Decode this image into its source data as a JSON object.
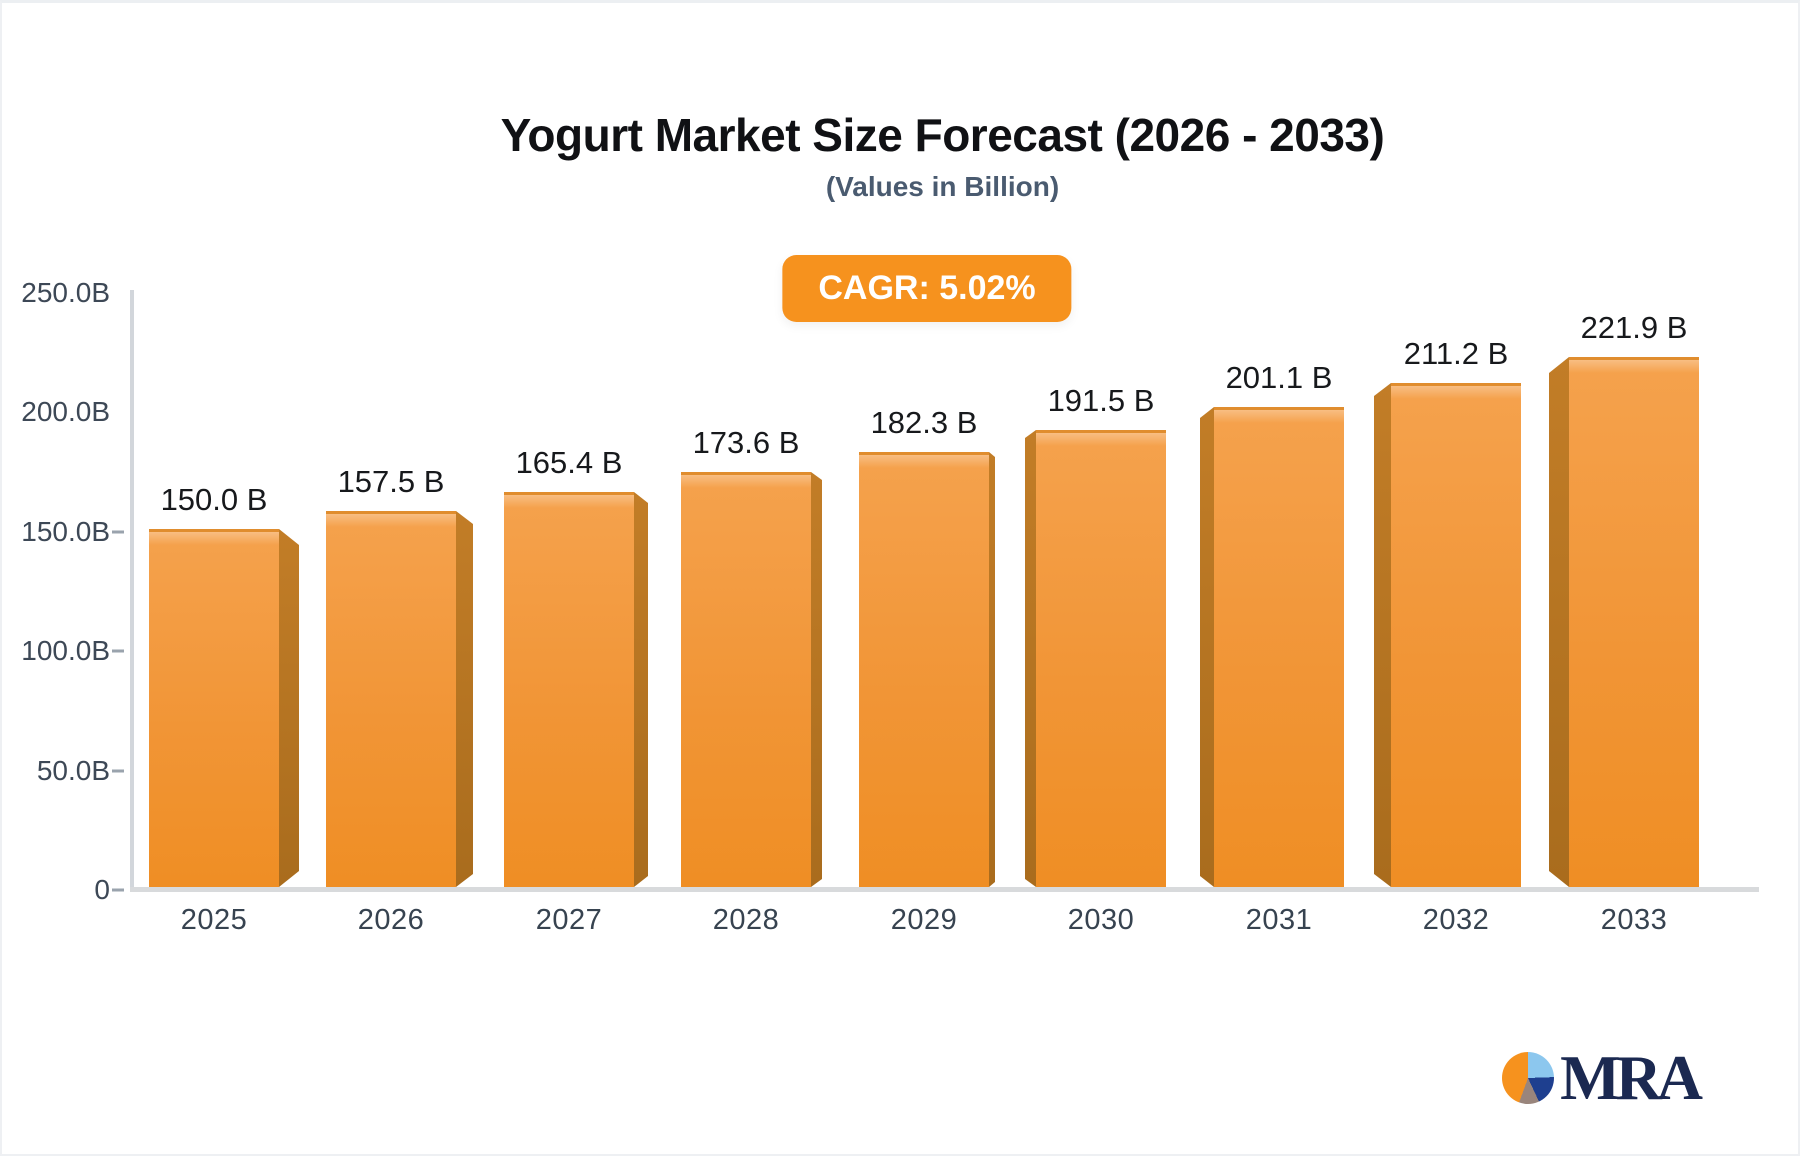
{
  "title": "Yogurt Market Size Forecast (2026 - 2033)",
  "subtitle": "(Values in Billion)",
  "badge": {
    "label": "CAGR: 5.02%",
    "color": "#F6921E"
  },
  "chart_data": {
    "type": "bar",
    "title": "Yogurt Market Size Forecast (2026 - 2033)",
    "subtitle": "(Values in Billion)",
    "cagr": "5.02%",
    "unit": "Billion",
    "categories": [
      "2025",
      "2026",
      "2027",
      "2028",
      "2029",
      "2030",
      "2031",
      "2032",
      "2033"
    ],
    "values": [
      150.0,
      157.5,
      165.4,
      173.6,
      182.3,
      191.5,
      201.1,
      211.2,
      221.9
    ],
    "value_labels": [
      "150.0 B",
      "157.5 B",
      "165.4 B",
      "173.6 B",
      "182.3 B",
      "191.5 B",
      "201.1 B",
      "211.2 B",
      "221.9 B"
    ],
    "ylim": [
      0,
      250
    ],
    "y_tick_labels": [
      "250.0B",
      "200.0B",
      "150.0B",
      "100.0B",
      "50.0B",
      "0"
    ],
    "grid": false,
    "legend": false,
    "bar_color": "#F19434",
    "bar_side_color": "#AE7122",
    "style": "pseudo-3d columns, perspective toward center"
  },
  "logo": {
    "text": "MRA",
    "text_color": "#1B2951",
    "pie_colors": {
      "orange": "#F6921E",
      "light_blue": "#8CC7EE",
      "navy": "#1E3F8F",
      "gray": "#99857C"
    }
  }
}
